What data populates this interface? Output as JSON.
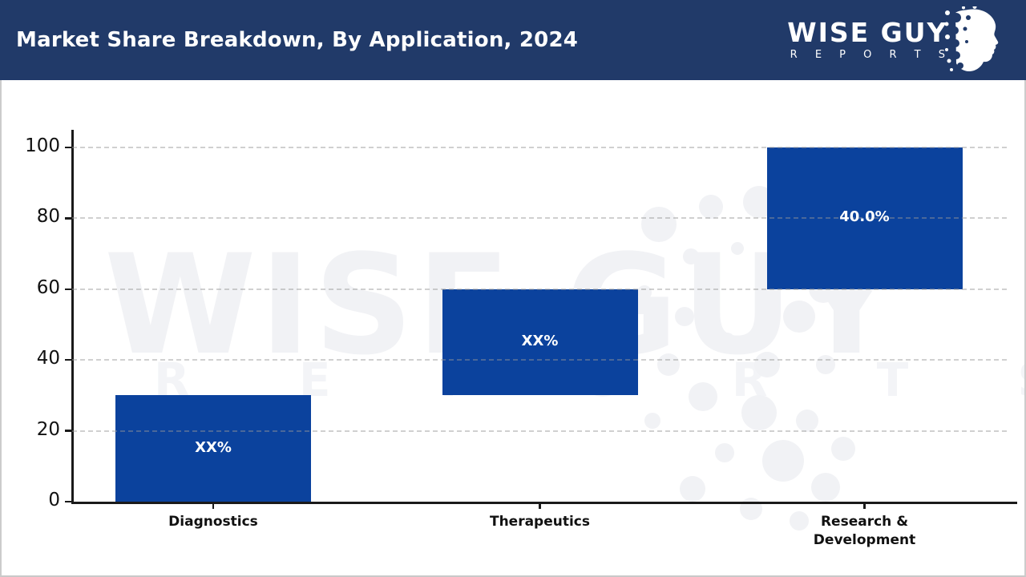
{
  "header": {
    "title": "Market Share Breakdown, By Application, 2024",
    "logo": {
      "line1": "WISE GUY",
      "line2": "R E P O R T S"
    }
  },
  "watermark": {
    "line1": "WISE GUY",
    "line2": "R E P O R T S"
  },
  "colors": {
    "header_bg": "#213a69",
    "bar": "#0b429d",
    "axis": "#1a1a1a",
    "grid": "#d4d4d4",
    "bar_label": "#ffffff",
    "watermark": "#f1f2f5",
    "border": "#cccccc"
  },
  "chart_data": {
    "type": "bar",
    "subtype": "waterfall",
    "title": "Market Share Breakdown, By Application, 2024",
    "categories": [
      "Diagnostics",
      "Therapeutics",
      "Research &\nDevelopment"
    ],
    "segments": [
      {
        "category": "Diagnostics",
        "start": 0,
        "end": 30,
        "value": 30,
        "label": "XX%"
      },
      {
        "category": "Therapeutics",
        "start": 30,
        "end": 60,
        "value": 30,
        "label": "XX%"
      },
      {
        "category": "Research & Development",
        "start": 60,
        "end": 100,
        "value": 40,
        "label": "40.0%"
      }
    ],
    "yticks": [
      0,
      20,
      40,
      60,
      80,
      100
    ],
    "ylim": [
      0,
      105
    ],
    "xlabel": "",
    "ylabel": "",
    "grid": "horizontal-dashed",
    "legend": "none",
    "bar_color": "#0b429d"
  }
}
